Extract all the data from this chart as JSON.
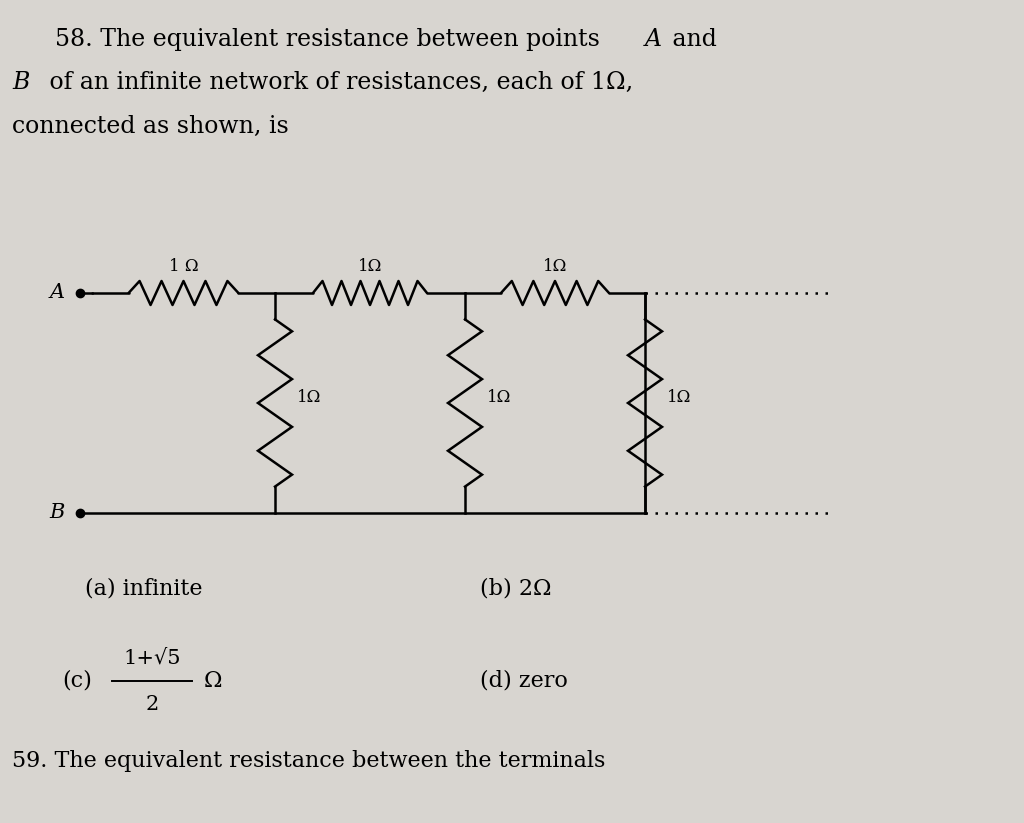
{
  "bg_color": "#d8d5d0",
  "fig_width": 10.24,
  "fig_height": 8.23,
  "title1": "58. The equivalent resistance between points ",
  "title1_italic": "A",
  "title1_rest": " and",
  "title2_italic": "B",
  "title2_rest": " of an infinite network of resistances, each of 1Ω,",
  "title3": "connected as shown, is",
  "opt_a": "(a) infinite",
  "opt_b": "(b) 2Ω",
  "opt_d": "(d) zero",
  "footer": "59. The equivalent resistance between the terminals",
  "lw": 1.8
}
